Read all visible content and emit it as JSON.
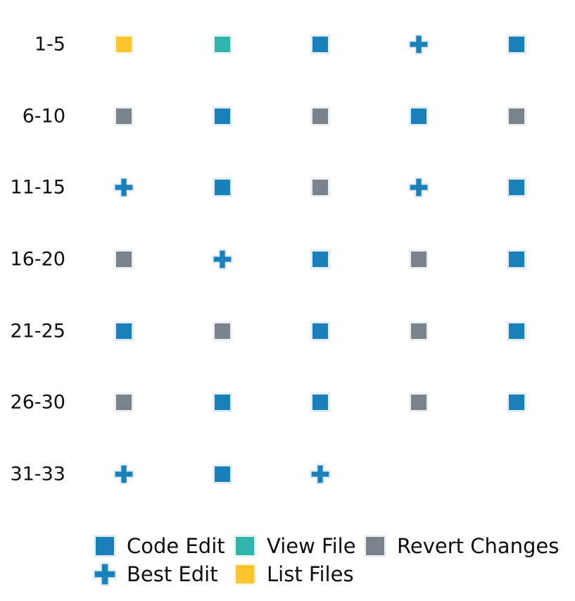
{
  "chart_data": {
    "type": "scatter",
    "title": "",
    "description": "Categorical grid timeline of agent actions; each row covers five sequential steps, each marker is the action taken at that step.",
    "columns_per_row": 5,
    "rows": [
      {
        "label": "1-5",
        "actions": [
          "list_files",
          "view_file",
          "code_edit",
          "best_edit",
          "code_edit"
        ]
      },
      {
        "label": "6-10",
        "actions": [
          "revert_changes",
          "code_edit",
          "revert_changes",
          "code_edit",
          "revert_changes"
        ]
      },
      {
        "label": "11-15",
        "actions": [
          "best_edit",
          "code_edit",
          "revert_changes",
          "best_edit",
          "code_edit"
        ]
      },
      {
        "label": "16-20",
        "actions": [
          "revert_changes",
          "best_edit",
          "code_edit",
          "revert_changes",
          "code_edit"
        ]
      },
      {
        "label": "21-25",
        "actions": [
          "code_edit",
          "revert_changes",
          "code_edit",
          "revert_changes",
          "code_edit"
        ]
      },
      {
        "label": "26-30",
        "actions": [
          "revert_changes",
          "code_edit",
          "code_edit",
          "revert_changes",
          "code_edit"
        ]
      },
      {
        "label": "31-33",
        "actions": [
          "best_edit",
          "code_edit",
          "best_edit"
        ]
      }
    ],
    "legend_position": "bottom",
    "legend_entries": [
      "Code Edit",
      "View File",
      "Revert Changes",
      "Best Edit",
      "List Files"
    ],
    "grid": false
  },
  "actions": {
    "code_edit": {
      "label": "Code Edit",
      "marker": "square",
      "color": "#1980B9",
      "edge": "#E3EEF7"
    },
    "view_file": {
      "label": "View File",
      "marker": "square",
      "color": "#2FB5AC",
      "edge": "#E6F6F3"
    },
    "revert_changes": {
      "label": "Revert Changes",
      "marker": "square",
      "color": "#7A828C",
      "edge": "#EEF0F3"
    },
    "best_edit": {
      "label": "Best Edit",
      "marker": "plus",
      "color": "#1980B9",
      "edge": "#E3EEF7"
    },
    "list_files": {
      "label": "List Files",
      "marker": "square",
      "color": "#FDC32B",
      "edge": "#FFF6DF"
    }
  },
  "legend": {
    "rows": [
      [
        "code_edit",
        "view_file",
        "revert_changes"
      ],
      [
        "best_edit",
        "list_files"
      ]
    ]
  }
}
